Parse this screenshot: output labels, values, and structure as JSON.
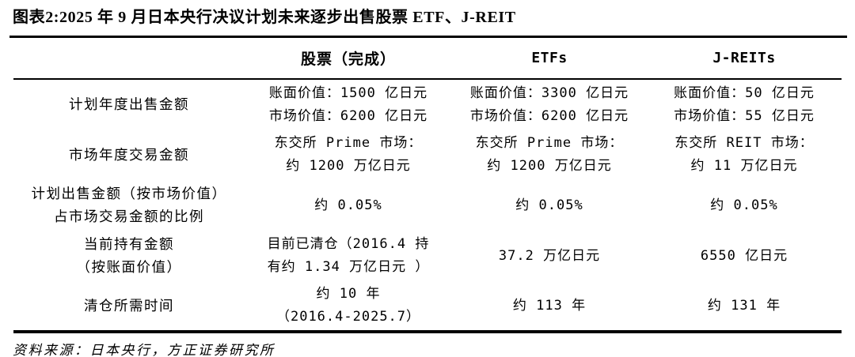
{
  "title": "图表2:2025 年 9 月日本央行决议计划未来逐步出售股票 ETF、J-REIT",
  "source": "资料来源：日本央行，方正证券研究所",
  "table": {
    "columns": [
      "",
      "股票（完成）",
      "ETFs",
      "J-REITs"
    ],
    "rows": [
      {
        "label": [
          "计划年度出售金额"
        ],
        "stock": [
          "账面价值：1500 亿日元",
          "市场价值：6200 亿日元"
        ],
        "etf": [
          "账面价值：3300 亿日元",
          "市场价值：6200 亿日元"
        ],
        "jreit": [
          "账面价值：50 亿日元",
          "市场价值：55 亿日元"
        ]
      },
      {
        "label": [
          "市场年度交易金额"
        ],
        "stock": [
          "东交所 Prime 市场：",
          "约 1200 万亿日元"
        ],
        "etf": [
          "东交所 Prime 市场：",
          "约 1200 万亿日元"
        ],
        "jreit": [
          "东交所 REIT 市场：",
          "约 11 万亿日元"
        ]
      },
      {
        "label": [
          "计划出售金额（按市场价值）",
          "占市场交易金额的比例"
        ],
        "stock": [
          "约 0.05%"
        ],
        "etf": [
          "约 0.05%"
        ],
        "jreit": [
          "约 0.05%"
        ]
      },
      {
        "label": [
          "当前持有金额",
          "（按账面价值）"
        ],
        "stock": [
          "目前已清仓（2016.4 持",
          "有约 1.34 万亿日元 ）"
        ],
        "etf": [
          "37.2 万亿日元"
        ],
        "jreit": [
          "6550 亿日元"
        ]
      },
      {
        "label": [
          "清仓所需时间"
        ],
        "stock": [
          "约 10 年",
          "（2016.4-2025.7）"
        ],
        "etf": [
          "约 113 年"
        ],
        "jreit": [
          "约 131 年"
        ]
      }
    ]
  }
}
